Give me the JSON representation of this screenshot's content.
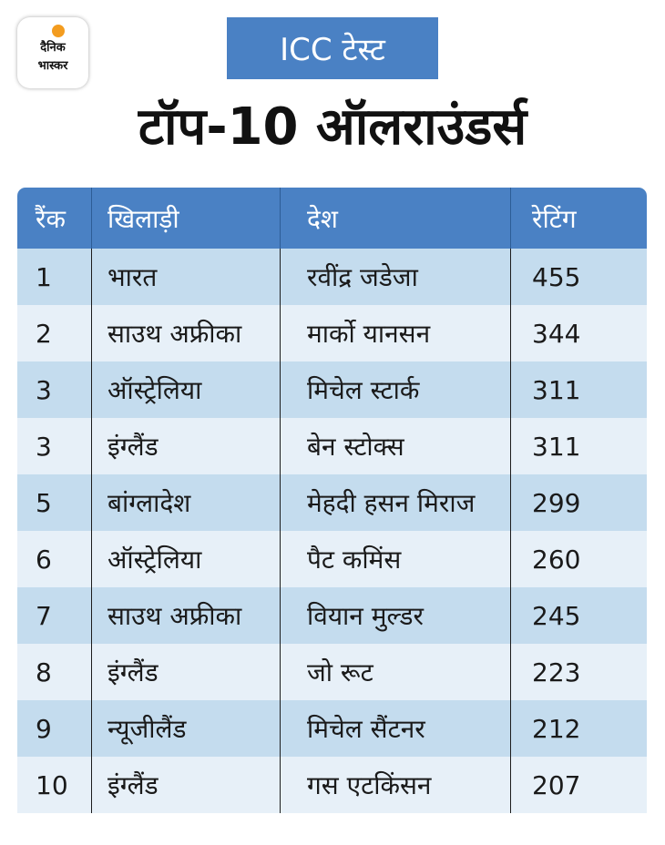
{
  "logo": {
    "line1": "दैनिक",
    "line2": "भास्कर",
    "sun_color": "#f39c1f"
  },
  "tag": {
    "label": "ICC टेस्ट"
  },
  "title": "टॉप-10 ऑलराउंडर्स",
  "colors": {
    "header_blue": "#4a81c4",
    "row_dark": "#c4dcee",
    "row_light": "#e7f0f8"
  },
  "table": {
    "headers": [
      "रैंक",
      "खिलाड़ी",
      "देश",
      "रेटिंग"
    ],
    "rows": [
      [
        "1",
        "भारत",
        "रवींद्र जडेजा",
        "455"
      ],
      [
        "2",
        "साउथ अफ्रीका",
        "मार्को यानसन",
        "344"
      ],
      [
        "3",
        "ऑस्ट्रेलिया",
        "मिचेल स्टार्क",
        "311"
      ],
      [
        "3",
        "इंग्लैंड",
        "बेन स्टोक्स",
        "311"
      ],
      [
        "5",
        "बांग्लादेश",
        "मेहदी हसन मिराज",
        "299"
      ],
      [
        "6",
        "ऑस्ट्रेलिया",
        "पैट कमिंस",
        "260"
      ],
      [
        "7",
        "साउथ अफ्रीका",
        "वियान मुल्डर",
        "245"
      ],
      [
        "8",
        "इंग्लैंड",
        "जो रूट",
        "223"
      ],
      [
        "9",
        "न्यूजीलैंड",
        "मिचेल सैंटनर",
        "212"
      ],
      [
        "10",
        "इंग्लैंड",
        "गस एटकिंसन",
        "207"
      ]
    ]
  }
}
